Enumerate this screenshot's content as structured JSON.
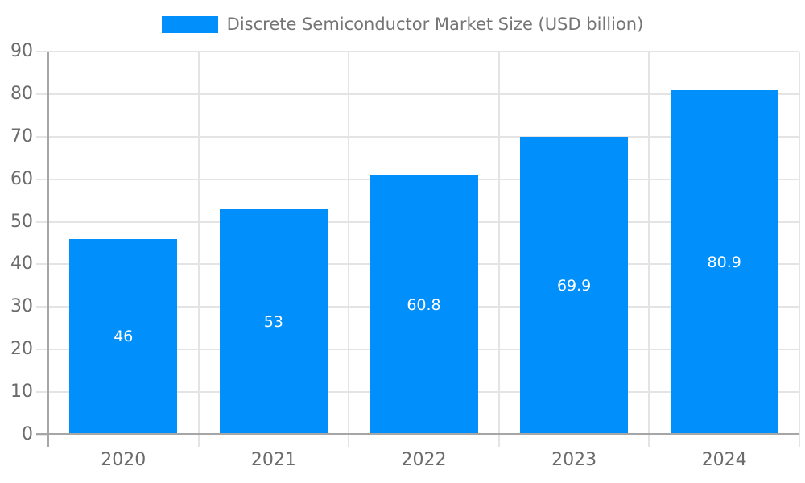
{
  "chart_data": {
    "type": "bar",
    "title": "Discrete Semiconductor Market Size (USD billion)",
    "categories": [
      "2020",
      "2021",
      "2022",
      "2023",
      "2024"
    ],
    "values": [
      46,
      53,
      60.8,
      69.9,
      80.9
    ],
    "value_labels": [
      "46",
      "53",
      "60.8",
      "69.9",
      "80.9"
    ],
    "yticks": [
      0,
      10,
      20,
      30,
      40,
      50,
      60,
      70,
      80,
      90
    ],
    "ylim": [
      0,
      90
    ],
    "xlabel": "",
    "ylabel": "",
    "grid": "horizontal and vertical",
    "legend_position": "top-center",
    "colors": {
      "bar": "#008FFB",
      "gridline": "#e4e4e4",
      "axis_line": "#a6a6a6",
      "axis_label": "#6b6b6b",
      "legend_label": "#757575",
      "value_label": "#ffffff",
      "background": "#ffffff"
    }
  }
}
